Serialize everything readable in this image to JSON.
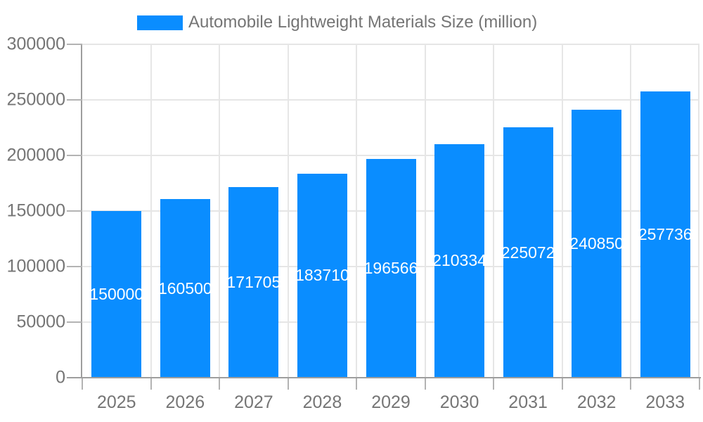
{
  "chart": {
    "legend": {
      "label": "Automobile Lightweight Materials Size (million)"
    }
  },
  "chart_data": {
    "type": "bar",
    "title": "Automobile Lightweight Materials Size (million)",
    "categories": [
      "2025",
      "2026",
      "2027",
      "2028",
      "2029",
      "2030",
      "2031",
      "2032",
      "2033"
    ],
    "series": [
      {
        "name": "Automobile Lightweight Materials Size (million)",
        "values": [
          150000,
          160500,
          171705,
          183710,
          196566,
          210334,
          225072,
          240850,
          257736
        ]
      }
    ],
    "value_labels": [
      "150000",
      "160500",
      "171705",
      "183710",
      "196566",
      "210334",
      "225072",
      "240850",
      "257736"
    ],
    "xlabel": "",
    "ylabel": "",
    "ylim": [
      0,
      300000
    ],
    "yticks": [
      0,
      50000,
      100000,
      150000,
      200000,
      250000,
      300000
    ],
    "ytick_labels": [
      "0",
      "50000",
      "100000",
      "150000",
      "200000",
      "250000",
      "300000"
    ],
    "grid": true,
    "legend_position": "top-center"
  },
  "colors": {
    "bar": "#0a8dff",
    "gridline": "#e6e6e6",
    "axis_line": "#9e9e9e",
    "tick": "#b3b3b3",
    "axis_label": "#757575",
    "legend_text": "#757575",
    "value_label": "#ffffff",
    "background": "#ffffff"
  }
}
